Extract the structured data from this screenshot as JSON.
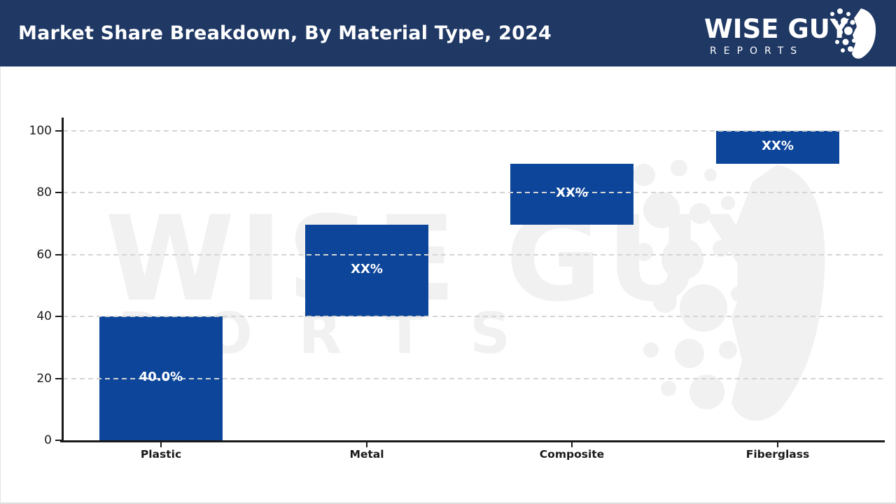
{
  "header": {
    "title": "Market Share Breakdown, By Material Type, 2024",
    "bg_color": "#1f3864",
    "logo": {
      "primary": "WISE GUY",
      "secondary": "REPORTS"
    }
  },
  "watermark": {
    "primary": "WISE GUY",
    "secondary": "REPORTS"
  },
  "chart_data": {
    "type": "bar",
    "subtype": "waterfall",
    "title": "Market Share Breakdown, By Material Type, 2024",
    "categories": [
      "Plastic",
      "Metal",
      "Composite",
      "Fiberglass"
    ],
    "segments": [
      {
        "category": "Plastic",
        "start": 0,
        "end": 40,
        "label": "40.0%"
      },
      {
        "category": "Metal",
        "start": 40,
        "end": 69.7,
        "label": "XX%"
      },
      {
        "category": "Composite",
        "start": 69.7,
        "end": 89.3,
        "label": "XX%"
      },
      {
        "category": "Fiberglass",
        "start": 89.3,
        "end": 100,
        "label": "XX%"
      }
    ],
    "yticks": [
      0,
      20,
      40,
      60,
      80,
      100
    ],
    "ylim": [
      0,
      104
    ],
    "xlabel": "",
    "ylabel": "",
    "grid": {
      "axis": "y",
      "style": "dashed",
      "color": "#d4d4d4",
      "drawn_over_bars": true
    },
    "bar_color": "#0c4599",
    "bar_label_color": "#ffffff",
    "axis_color": "#1a1a1a",
    "legend": "none"
  }
}
